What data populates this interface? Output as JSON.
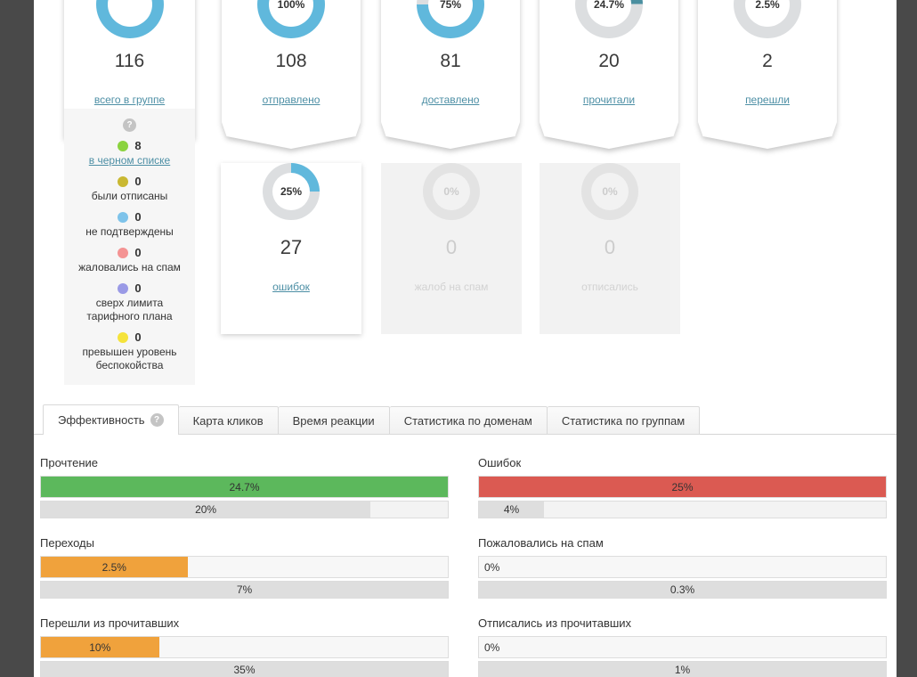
{
  "top_cards": [
    {
      "value": "116",
      "label": "всего в группе",
      "percent": 100,
      "percent_label": "",
      "color": "#60b8dc"
    },
    {
      "value": "108",
      "label": "отправлено",
      "percent": 100,
      "percent_label": "100%",
      "color": "#60b8dc"
    },
    {
      "value": "81",
      "label": "доставлено",
      "percent": 75,
      "percent_label": "75%",
      "color": "#60b8dc"
    },
    {
      "value": "20",
      "label": "прочитали",
      "percent": 24.7,
      "percent_label": "24.7%",
      "color": "#4a8fa0"
    },
    {
      "value": "2",
      "label": "перешли",
      "percent": 2.5,
      "percent_label": "2.5%",
      "color": "#4a8fa0"
    }
  ],
  "legend": {
    "help_icon": "?",
    "items": [
      {
        "dot_color": "#8bd33f",
        "value": "8",
        "label": "в черном списке",
        "is_link": true
      },
      {
        "dot_color": "#c9b832",
        "value": "0",
        "label": "были отписаны",
        "is_link": false
      },
      {
        "dot_color": "#7ec3ea",
        "value": "0",
        "label": "не подтверждены",
        "is_link": false
      },
      {
        "dot_color": "#f49393",
        "value": "0",
        "label": "жаловались на спам",
        "is_link": false
      },
      {
        "dot_color": "#9a9ae6",
        "value": "0",
        "label": "сверх лимита тарифного плана",
        "is_link": false
      },
      {
        "dot_color": "#f5e33b",
        "value": "0",
        "label": "превышен уровень беспокойства",
        "is_link": false
      }
    ]
  },
  "mid_cards": [
    {
      "value": "27",
      "label": "ошибок",
      "percent": 25,
      "percent_label": "25%",
      "color": "#60b8dc",
      "dimmed": false
    },
    {
      "value": "0",
      "label": "жалоб на спам",
      "percent": 0,
      "percent_label": "0%",
      "color": "",
      "dimmed": true
    },
    {
      "value": "0",
      "label": "отписались",
      "percent": 0,
      "percent_label": "0%",
      "color": "",
      "dimmed": true
    }
  ],
  "tabs": [
    {
      "label": "Эффективность",
      "active": true,
      "help": true
    },
    {
      "label": "Карта кликов",
      "active": false,
      "help": false
    },
    {
      "label": "Время реакции",
      "active": false,
      "help": false
    },
    {
      "label": "Статистика по доменам",
      "active": false,
      "help": false
    },
    {
      "label": "Статистика по группам",
      "active": false,
      "help": false
    }
  ],
  "effectiveness": {
    "columns": [
      [
        {
          "title": "Прочтение",
          "main": {
            "label": "24.7%",
            "width_pct": 100,
            "color": "green"
          },
          "avg": {
            "label": "20%",
            "width_pct": 81
          }
        },
        {
          "title": "Переходы",
          "main": {
            "label": "2.5%",
            "width_pct": 36,
            "color": "orange"
          },
          "avg": {
            "label": "7%",
            "width_pct": 100
          }
        },
        {
          "title": "Перешли из прочитавших",
          "main": {
            "label": "10%",
            "width_pct": 29,
            "color": "orange"
          },
          "avg": {
            "label": "35%",
            "width_pct": 100
          }
        }
      ],
      [
        {
          "title": "Ошибок",
          "main": {
            "label": "25%",
            "width_pct": 100,
            "color": "red"
          },
          "avg": {
            "label": "4%",
            "width_pct": 16
          }
        },
        {
          "title": "Пожаловались на спам",
          "main": {
            "label": "0%",
            "width_pct": 0,
            "color": "none"
          },
          "avg": {
            "label": "0.3%",
            "width_pct": 100
          }
        },
        {
          "title": "Отписались из прочитавших",
          "main": {
            "label": "0%",
            "width_pct": 0,
            "color": "none"
          },
          "avg": {
            "label": "1%",
            "width_pct": 100
          }
        }
      ]
    ]
  },
  "palette": {
    "green": "#5cb85c",
    "orange": "#f0a23c",
    "red": "#db5a52",
    "none": "transparent",
    "donut_track": "#dcdee0"
  }
}
